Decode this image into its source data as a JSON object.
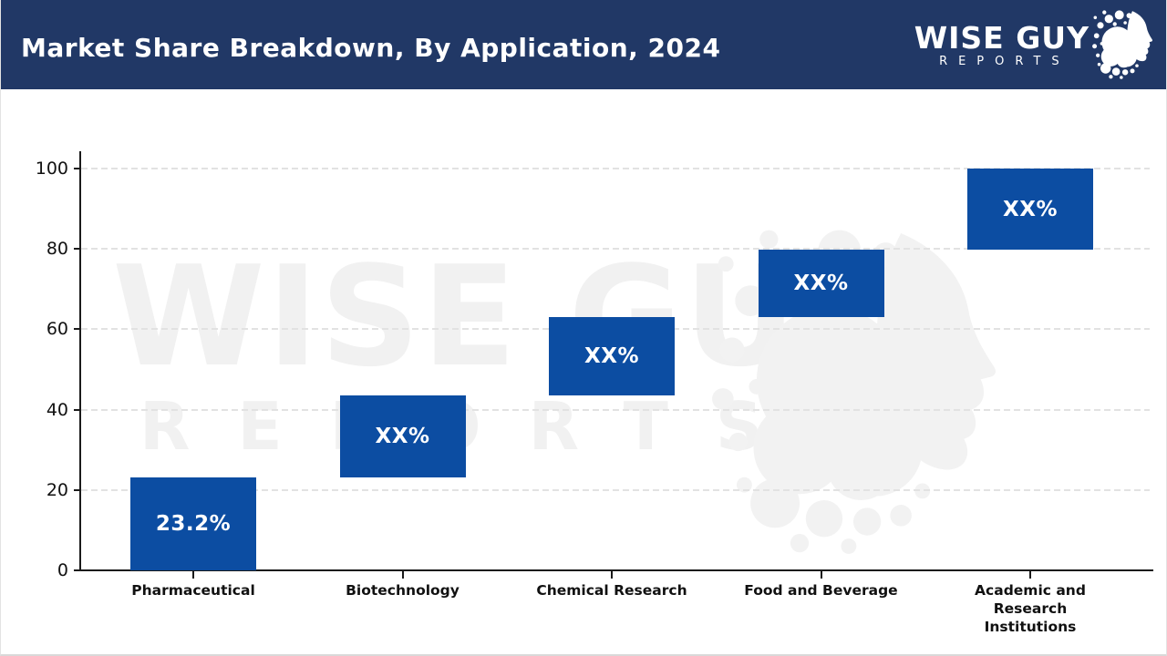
{
  "header": {
    "title": "Market Share Breakdown, By Application, 2024",
    "logo": {
      "line1": "WISE GUY",
      "line2": "REPORTS"
    }
  },
  "watermark": {
    "line1": "WISE GUY",
    "line2": "REPORTS"
  },
  "colors": {
    "header_bg": "#213866",
    "bar_blue": "#0c4da2",
    "bar_label": "#ffffff",
    "gridline": "#e2e2e2",
    "watermark": "#f1f1f1"
  },
  "chart_data": {
    "type": "bar",
    "subtype": "waterfall",
    "title": "Market Share Breakdown, By Application, 2024",
    "categories": [
      "Pharmaceutical",
      "Biotechnology",
      "Chemical Research",
      "Food and Beverage",
      "Academic and Research Institutions"
    ],
    "series": [
      {
        "name": "Market Share",
        "segments": [
          {
            "category": "Pharmaceutical",
            "start": 0,
            "end": 23.2,
            "label": "23.2%"
          },
          {
            "category": "Biotechnology",
            "start": 23.2,
            "end": 43.6,
            "label": "XX%"
          },
          {
            "category": "Chemical Research",
            "start": 43.6,
            "end": 63.1,
            "label": "XX%"
          },
          {
            "category": "Food and Beverage",
            "start": 63.1,
            "end": 79.8,
            "label": "XX%"
          },
          {
            "category": "Academic and Research Institutions",
            "start": 79.8,
            "end": 100,
            "label": "XX%"
          }
        ]
      }
    ],
    "xlabel": "",
    "ylabel": "",
    "ylim": [
      0,
      100
    ],
    "yticks": [
      0,
      20,
      40,
      60,
      80,
      100
    ],
    "grid": "horizontal-dashed",
    "legend": "none"
  }
}
